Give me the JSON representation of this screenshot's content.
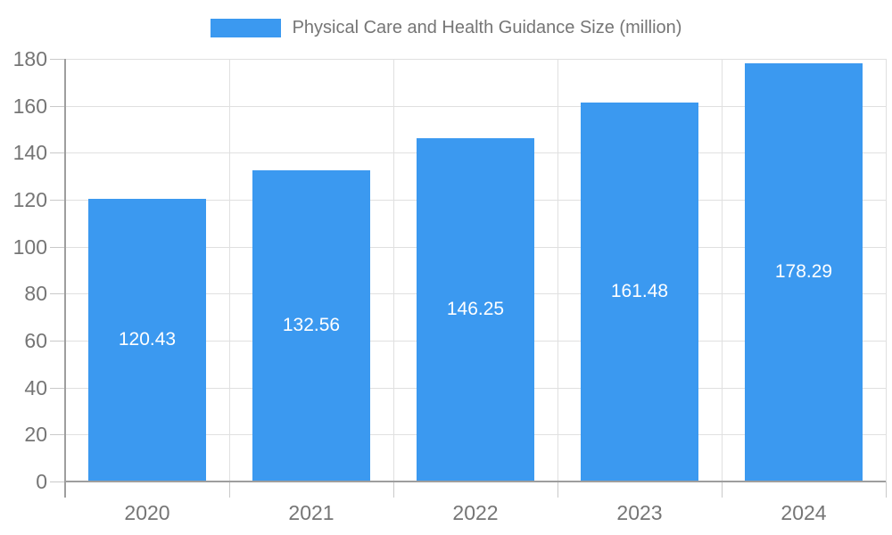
{
  "chart_data": {
    "type": "bar",
    "title": "Physical Care and Health Guidance Size (million)",
    "categories": [
      "2020",
      "2021",
      "2022",
      "2023",
      "2024"
    ],
    "values": [
      120.43,
      132.56,
      146.25,
      161.48,
      178.29
    ],
    "value_labels": [
      "120.43",
      "132.56",
      "146.25",
      "161.48",
      "178.29"
    ],
    "yticks": [
      0,
      20,
      40,
      60,
      80,
      100,
      120,
      140,
      160,
      180
    ],
    "ytick_labels": [
      "0",
      "20",
      "40",
      "60",
      "80",
      "100",
      "120",
      "140",
      "160",
      "180"
    ],
    "ylim": [
      0,
      180
    ],
    "xlabel": "",
    "ylabel": "",
    "grid": true,
    "legend": {
      "position": "top",
      "label": "Physical Care and Health Guidance Size (million)"
    },
    "colors": {
      "bar": "#3b99f0",
      "axis_line": "#9e9e9e",
      "grid_line": "#e0e0e0",
      "tick_mark": "#c9c9c9",
      "tick_label": "#757575",
      "legend_label": "#757575",
      "value_label": "#ffffff",
      "background": "#ffffff"
    }
  }
}
